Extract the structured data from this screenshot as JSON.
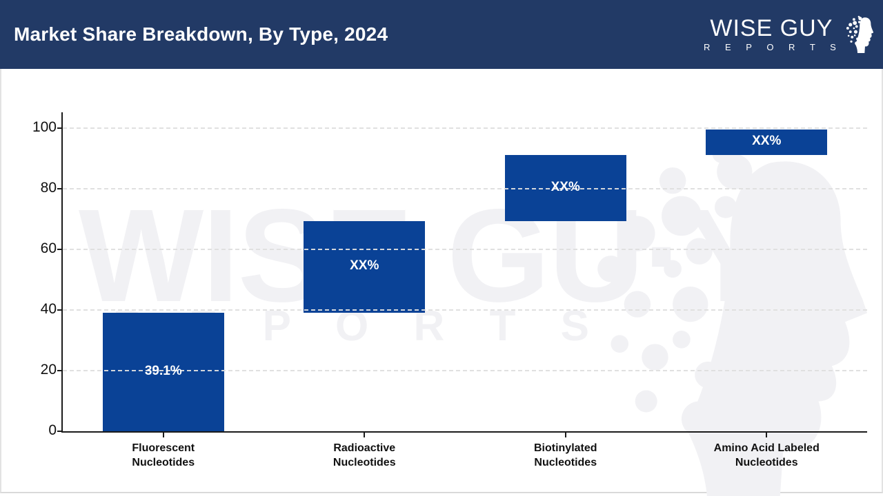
{
  "header": {
    "title": "Market Share Breakdown, By Type, 2024",
    "logo": {
      "name_top": "WISE GUY",
      "name_bottom": "R E P O R T S"
    }
  },
  "watermark": {
    "large_text": "WISE GU·Y",
    "small_text": "R E P O R T S"
  },
  "chart_data": {
    "type": "bar",
    "subtype": "waterfall",
    "title": "Market Share Breakdown, By Type, 2024",
    "categories": [
      "Fluorescent Nucleotides",
      "Radioactive Nucleotides",
      "Biotinylated Nucleotides",
      "Amino Acid Labeled Nucleotides"
    ],
    "categories_lines": [
      [
        "Fluorescent",
        "Nucleotides"
      ],
      [
        "Radioactive",
        "Nucleotides"
      ],
      [
        "Biotinylated",
        "Nucleotides"
      ],
      [
        "Amino Acid Labeled",
        "Nucleotides"
      ]
    ],
    "segments": [
      {
        "category": "Fluorescent Nucleotides",
        "start": 0,
        "end": 39.1,
        "label": "39.1%"
      },
      {
        "category": "Radioactive Nucleotides",
        "start": 39.1,
        "end": 69.4,
        "label": "XX%"
      },
      {
        "category": "Biotinylated Nucleotides",
        "start": 69.4,
        "end": 91.2,
        "label": "XX%"
      },
      {
        "category": "Amino Acid Labeled Nucleotides",
        "start": 91.2,
        "end": 99.5,
        "label": "XX%"
      }
    ],
    "y_ticks": [
      0,
      20,
      40,
      60,
      80,
      100
    ],
    "ylim": [
      0,
      100
    ],
    "xlabel": "",
    "ylabel": "",
    "legend": "none",
    "grid": "horizontal-dashed",
    "bar_color": "#0a4296",
    "header_color": "#223a66",
    "gridline_color": "#dedede"
  }
}
